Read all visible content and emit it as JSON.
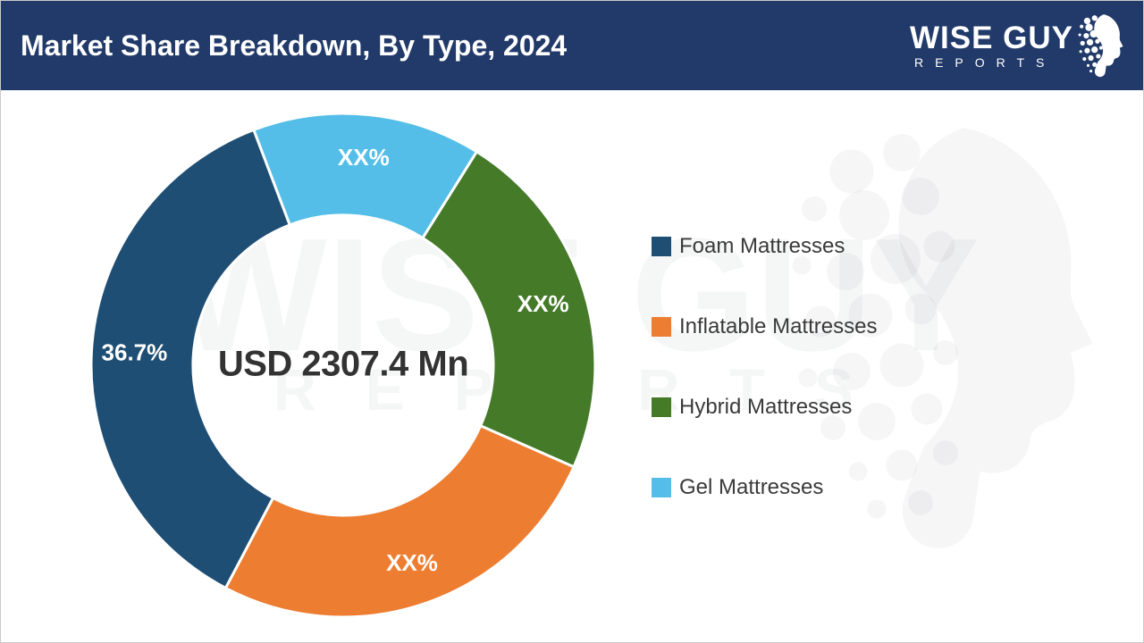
{
  "header": {
    "title": "Market Share Breakdown, By Type, 2024",
    "logo": {
      "wordmark": "WISE GUY",
      "subtitle": "REPORTS"
    }
  },
  "watermark": {
    "line1": "WISE GUY",
    "line2": "REPORTS"
  },
  "chart_data": {
    "type": "pie",
    "variant": "donut",
    "title": "Market Share Breakdown, By Type, 2024",
    "center_label": "USD 2307.4 Mn",
    "value_unit": "USD Mn",
    "segments": [
      {
        "name": "Foam Mattresses",
        "color": "#1f4e74",
        "label": "36.7%",
        "arc_pct": 36.7,
        "start_angle": 207.8,
        "end_angle": 339.2
      },
      {
        "name": "Gel Mattresses",
        "color": "#54bee8",
        "label": "XX%",
        "arc_pct": 14.7,
        "start_angle": 339.2,
        "end_angle": 392.0
      },
      {
        "name": "Hybrid Mattresses",
        "color": "#457a29",
        "label": "XX%",
        "arc_pct": 22.7,
        "start_angle": 32.0,
        "end_angle": 113.8
      },
      {
        "name": "Inflatable Mattresses",
        "color": "#ed7d31",
        "label": "XX%",
        "arc_pct": 26.1,
        "start_angle": 113.8,
        "end_angle": 207.8
      }
    ],
    "legend": {
      "position": "right",
      "items": [
        {
          "label": "Foam Mattresses",
          "color": "#1f4e74"
        },
        {
          "label": "Inflatable Mattresses",
          "color": "#ed7d31"
        },
        {
          "label": "Hybrid Mattresses",
          "color": "#457a29"
        },
        {
          "label": "Gel Mattresses",
          "color": "#54bee8"
        }
      ]
    }
  },
  "colors": {
    "header_bg": "#213a69",
    "page_border": "#c9c9c9",
    "center_text": "#333333",
    "legend_text": "#3a3a3a"
  }
}
